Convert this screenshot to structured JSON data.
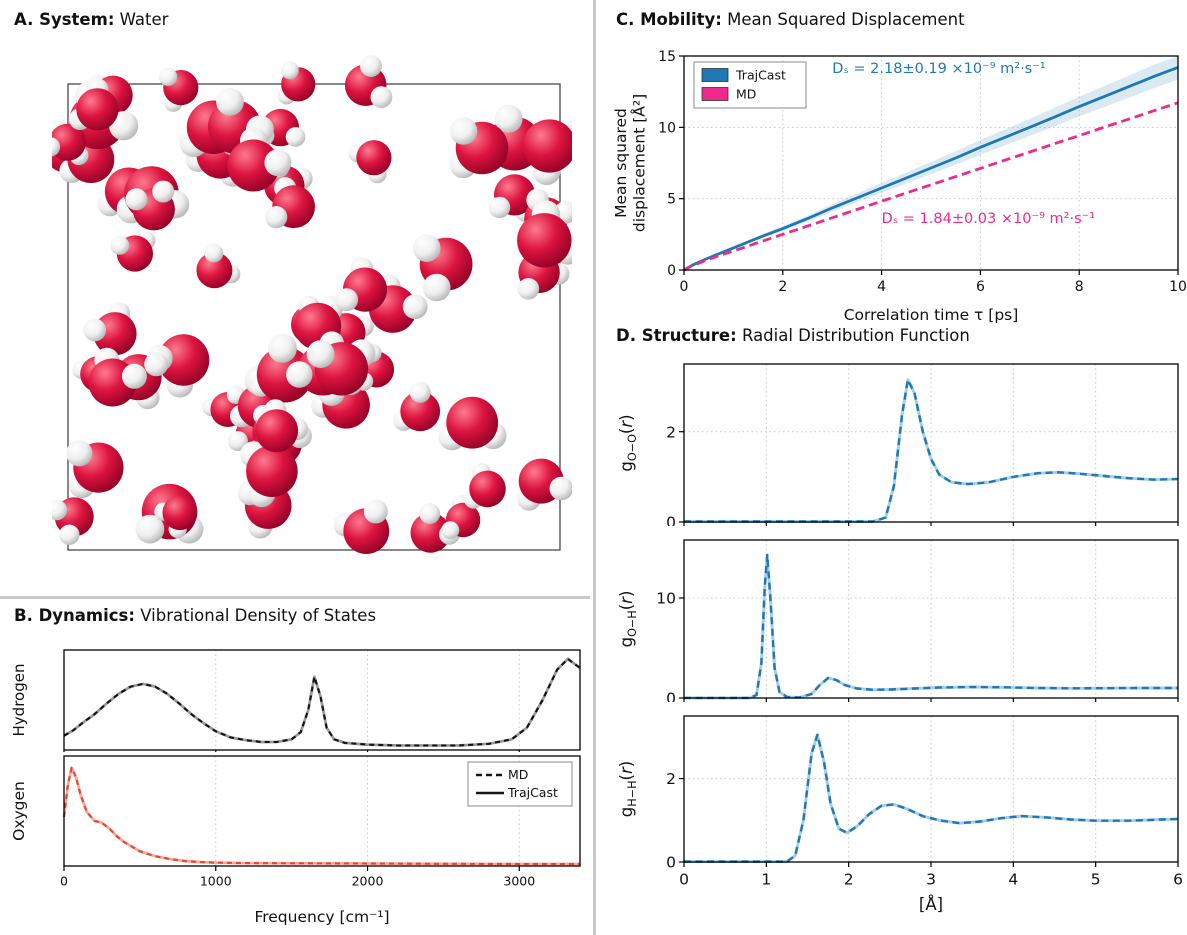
{
  "panels": {
    "a": {
      "title_bold": "A. System:",
      "title_rest": " Water"
    },
    "b": {
      "title_bold": "B. Dynamics:",
      "title_rest": " Vibrational Density of States"
    },
    "c": {
      "title_bold": "C. Mobility:",
      "title_rest": " Mean Squared Displacement"
    },
    "d": {
      "title_bold": "D. Structure:",
      "title_rest": " Radial Distribution Function"
    }
  },
  "system": {
    "box_color": "#3a3a3a",
    "molecule_count": 64,
    "seed": 11,
    "oxygen": {
      "color_light": "#ff7b8e",
      "color_core": "#dc1440",
      "color_dark": "#8c0024",
      "radius": 23
    },
    "hydrogen": {
      "color_light": "#ffffff",
      "color_core": "#efefef",
      "color_dark": "#b0b0b0",
      "radius": 12
    }
  },
  "chart_data": [
    {
      "id": "msd",
      "type": "line",
      "title": "C. Mobility: Mean Squared Displacement",
      "xlabel": "Correlation time τ  [ps]",
      "ylabel_lines": [
        "Mean squared",
        "displacement [Å²]"
      ],
      "xlim": [
        0,
        10
      ],
      "ylim": [
        0,
        15
      ],
      "xticks": [
        0,
        2,
        4,
        6,
        8,
        10
      ],
      "yticks": [
        0,
        5,
        10,
        15
      ],
      "series": [
        {
          "name": "TrajCast",
          "color": "#1f78b4",
          "style": "solid",
          "width": 2.8,
          "band_frac": 0.06,
          "pts": [
            [
              0,
              0
            ],
            [
              0.15,
              0.3
            ],
            [
              0.3,
              0.55
            ],
            [
              0.5,
              0.85
            ],
            [
              0.75,
              1.2
            ],
            [
              1,
              1.55
            ],
            [
              1.5,
              2.25
            ],
            [
              2,
              2.9
            ],
            [
              2.5,
              3.6
            ],
            [
              3,
              4.35
            ],
            [
              3.5,
              5.05
            ],
            [
              4,
              5.75
            ],
            [
              4.5,
              6.45
            ],
            [
              5,
              7.15
            ],
            [
              5.5,
              7.85
            ],
            [
              6,
              8.6
            ],
            [
              6.5,
              9.3
            ],
            [
              7,
              10.0
            ],
            [
              7.5,
              10.72
            ],
            [
              8,
              11.45
            ],
            [
              8.5,
              12.15
            ],
            [
              9,
              12.85
            ],
            [
              9.5,
              13.55
            ],
            [
              10,
              14.2
            ]
          ]
        },
        {
          "name": "MD",
          "color": "#ee2a8c",
          "style": "dashed",
          "dash": "9 5",
          "width": 2.8,
          "pts": [
            [
              0,
              0
            ],
            [
              0.15,
              0.28
            ],
            [
              0.3,
              0.48
            ],
            [
              0.5,
              0.75
            ],
            [
              0.75,
              1.05
            ],
            [
              1,
              1.33
            ],
            [
              1.5,
              1.92
            ],
            [
              2,
              2.5
            ],
            [
              2.5,
              3.08
            ],
            [
              3,
              3.66
            ],
            [
              3.5,
              4.24
            ],
            [
              4,
              4.82
            ],
            [
              4.5,
              5.4
            ],
            [
              5,
              5.97
            ],
            [
              5.5,
              6.55
            ],
            [
              6,
              7.12
            ],
            [
              6.5,
              7.7
            ],
            [
              7,
              8.27
            ],
            [
              7.5,
              8.85
            ],
            [
              8,
              9.42
            ],
            [
              8.5,
              10.0
            ],
            [
              9,
              10.57
            ],
            [
              9.5,
              11.15
            ],
            [
              10,
              11.72
            ]
          ]
        }
      ],
      "legend": {
        "items": [
          {
            "label": "TrajCast",
            "color": "#1f78b4"
          },
          {
            "label": "MD",
            "color": "#ee2a8c"
          }
        ]
      },
      "annotations": [
        {
          "text": "Dₛ = 2.18±0.19 ×10⁻⁹ m²·s⁻¹",
          "color": "#1f78b4"
        },
        {
          "text": "Dₛ = 1.84±0.03 ×10⁻⁹ m²·s⁻¹",
          "color": "#ee2a8c"
        }
      ]
    },
    {
      "id": "vdos_h",
      "type": "line",
      "title": "B. Dynamics: Vibrational Density of States (Hydrogen)",
      "ylabel": "Hydrogen",
      "xlim": [
        0,
        3400
      ],
      "ylim": [
        0,
        1.12
      ],
      "xticks": [
        0,
        1000,
        2000,
        3000
      ],
      "xtick_labels": false,
      "yticks": [],
      "series": [
        {
          "name": "TrajCast",
          "color": "#999999",
          "style": "solid",
          "width": 2.7,
          "pts": [
            [
              0,
              0.16
            ],
            [
              60,
              0.22
            ],
            [
              120,
              0.3
            ],
            [
              200,
              0.4
            ],
            [
              280,
              0.52
            ],
            [
              360,
              0.63
            ],
            [
              440,
              0.71
            ],
            [
              520,
              0.74
            ],
            [
              600,
              0.71
            ],
            [
              680,
              0.63
            ],
            [
              760,
              0.52
            ],
            [
              840,
              0.4
            ],
            [
              920,
              0.3
            ],
            [
              1000,
              0.21
            ],
            [
              1100,
              0.14
            ],
            [
              1200,
              0.11
            ],
            [
              1300,
              0.09
            ],
            [
              1400,
              0.09
            ],
            [
              1500,
              0.12
            ],
            [
              1560,
              0.2
            ],
            [
              1610,
              0.45
            ],
            [
              1650,
              0.82
            ],
            [
              1690,
              0.6
            ],
            [
              1730,
              0.25
            ],
            [
              1780,
              0.12
            ],
            [
              1850,
              0.08
            ],
            [
              2000,
              0.06
            ],
            [
              2200,
              0.05
            ],
            [
              2400,
              0.05
            ],
            [
              2600,
              0.05
            ],
            [
              2800,
              0.07
            ],
            [
              2950,
              0.12
            ],
            [
              3050,
              0.25
            ],
            [
              3150,
              0.55
            ],
            [
              3250,
              0.9
            ],
            [
              3320,
              1.02
            ],
            [
              3400,
              0.92
            ]
          ]
        },
        {
          "name": "MD",
          "color": "#141414",
          "style": "dashed",
          "dash": "5 4",
          "width": 2.1,
          "same_as_prev": true
        }
      ]
    },
    {
      "id": "vdos_o",
      "type": "line",
      "title": "B. Dynamics: Vibrational Density of States (Oxygen)",
      "ylabel": "Oxygen",
      "xlabel": "Frequency [cm⁻¹]",
      "xlim": [
        0,
        3400
      ],
      "ylim": [
        0,
        1.12
      ],
      "xticks": [
        0,
        1000,
        2000,
        3000
      ],
      "yticks": [],
      "series": [
        {
          "name": "TrajCast",
          "color": "#f7a79a",
          "style": "solid",
          "width": 2.7,
          "pts": [
            [
              0,
              0.5
            ],
            [
              25,
              0.82
            ],
            [
              50,
              1.0
            ],
            [
              80,
              0.9
            ],
            [
              110,
              0.72
            ],
            [
              150,
              0.55
            ],
            [
              200,
              0.46
            ],
            [
              250,
              0.44
            ],
            [
              300,
              0.38
            ],
            [
              350,
              0.3
            ],
            [
              400,
              0.24
            ],
            [
              500,
              0.15
            ],
            [
              600,
              0.1
            ],
            [
              700,
              0.07
            ],
            [
              800,
              0.05
            ],
            [
              900,
              0.04
            ],
            [
              1000,
              0.035
            ],
            [
              1200,
              0.03
            ],
            [
              1500,
              0.028
            ],
            [
              2000,
              0.025
            ],
            [
              2500,
              0.022
            ],
            [
              3000,
              0.02
            ],
            [
              3400,
              0.02
            ]
          ]
        },
        {
          "name": "MD",
          "color": "#e64531",
          "style": "dashed",
          "dash": "5 4",
          "width": 2.1,
          "same_as_prev": true
        }
      ],
      "legend": {
        "items": [
          {
            "label": "MD",
            "color": "#141414",
            "style": "dashed"
          },
          {
            "label": "TrajCast",
            "color": "#141414",
            "style": "solid"
          }
        ]
      }
    },
    {
      "id": "rdf_oo",
      "type": "line",
      "title": "D. Structure: Radial Distribution Function g O-O",
      "ylabel_parts": [
        {
          "t": "g"
        },
        {
          "t": "O−O",
          "sub": true
        },
        {
          "t": "("
        },
        {
          "t": "r",
          "italic": true
        },
        {
          "t": ")"
        }
      ],
      "xlim": [
        0,
        6
      ],
      "ylim": [
        0,
        3.5
      ],
      "xticks": [
        0,
        1,
        2,
        3,
        4,
        5,
        6
      ],
      "xtick_labels": false,
      "yticks": [
        0,
        2
      ],
      "series": [
        {
          "name": "TrajCast",
          "color": "#a6cde4",
          "style": "solid",
          "width": 2.9,
          "pts": [
            [
              0,
              0.01
            ],
            [
              2.3,
              0.01
            ],
            [
              2.45,
              0.1
            ],
            [
              2.55,
              0.8
            ],
            [
              2.65,
              2.4
            ],
            [
              2.72,
              3.15
            ],
            [
              2.8,
              2.85
            ],
            [
              2.9,
              2.0
            ],
            [
              3.0,
              1.4
            ],
            [
              3.1,
              1.05
            ],
            [
              3.25,
              0.88
            ],
            [
              3.45,
              0.84
            ],
            [
              3.7,
              0.88
            ],
            [
              4.0,
              1.0
            ],
            [
              4.3,
              1.08
            ],
            [
              4.55,
              1.1
            ],
            [
              4.8,
              1.07
            ],
            [
              5.1,
              1.02
            ],
            [
              5.4,
              0.97
            ],
            [
              5.7,
              0.94
            ],
            [
              6,
              0.95
            ]
          ]
        },
        {
          "name": "MD",
          "color": "#1f78b4",
          "style": "dashed",
          "dash": "7 4.5",
          "width": 2.4,
          "same_as_prev": true
        }
      ]
    },
    {
      "id": "rdf_oh",
      "type": "line",
      "title": "D. Structure: Radial Distribution Function g O-H",
      "ylabel_parts": [
        {
          "t": "g"
        },
        {
          "t": "O−H",
          "sub": true
        },
        {
          "t": "("
        },
        {
          "t": "r",
          "italic": true
        },
        {
          "t": ")"
        }
      ],
      "xlim": [
        0,
        6
      ],
      "ylim": [
        0,
        15.8
      ],
      "xticks": [
        0,
        1,
        2,
        3,
        4,
        5,
        6
      ],
      "xtick_labels": false,
      "yticks": [
        0,
        10
      ],
      "series": [
        {
          "name": "TrajCast",
          "color": "#a6cde4",
          "style": "solid",
          "width": 2.9,
          "pts": [
            [
              0,
              0.01
            ],
            [
              0.8,
              0.01
            ],
            [
              0.88,
              0.3
            ],
            [
              0.94,
              3.5
            ],
            [
              0.98,
              11
            ],
            [
              1.01,
              14.3
            ],
            [
              1.05,
              10
            ],
            [
              1.1,
              3
            ],
            [
              1.16,
              0.6
            ],
            [
              1.25,
              0.1
            ],
            [
              1.4,
              0.05
            ],
            [
              1.55,
              0.4
            ],
            [
              1.65,
              1.3
            ],
            [
              1.75,
              2.0
            ],
            [
              1.85,
              1.8
            ],
            [
              1.95,
              1.3
            ],
            [
              2.1,
              0.95
            ],
            [
              2.3,
              0.82
            ],
            [
              2.5,
              0.85
            ],
            [
              2.8,
              0.95
            ],
            [
              3.1,
              1.05
            ],
            [
              3.5,
              1.1
            ],
            [
              3.9,
              1.07
            ],
            [
              4.3,
              1.0
            ],
            [
              4.7,
              0.97
            ],
            [
              5.1,
              0.98
            ],
            [
              5.5,
              1.0
            ],
            [
              6,
              1.0
            ]
          ]
        },
        {
          "name": "MD",
          "color": "#1f78b4",
          "style": "dashed",
          "dash": "7 4.5",
          "width": 2.4,
          "same_as_prev": true
        }
      ]
    },
    {
      "id": "rdf_hh",
      "type": "line",
      "title": "D. Structure: Radial Distribution Function g H-H",
      "ylabel_parts": [
        {
          "t": "g"
        },
        {
          "t": "H−H",
          "sub": true
        },
        {
          "t": "("
        },
        {
          "t": "r",
          "italic": true
        },
        {
          "t": ")"
        }
      ],
      "xlabel": "[Å]",
      "xlim": [
        0,
        6
      ],
      "ylim": [
        0,
        3.5
      ],
      "xticks": [
        0,
        1,
        2,
        3,
        4,
        5,
        6
      ],
      "yticks": [
        0,
        2
      ],
      "series": [
        {
          "name": "TrajCast",
          "color": "#a6cde4",
          "style": "solid",
          "width": 2.9,
          "pts": [
            [
              0,
              0.01
            ],
            [
              1.25,
              0.01
            ],
            [
              1.35,
              0.15
            ],
            [
              1.45,
              1.0
            ],
            [
              1.55,
              2.6
            ],
            [
              1.62,
              3.05
            ],
            [
              1.7,
              2.4
            ],
            [
              1.78,
              1.4
            ],
            [
              1.88,
              0.8
            ],
            [
              1.98,
              0.7
            ],
            [
              2.1,
              0.85
            ],
            [
              2.25,
              1.15
            ],
            [
              2.4,
              1.35
            ],
            [
              2.55,
              1.38
            ],
            [
              2.7,
              1.28
            ],
            [
              2.9,
              1.1
            ],
            [
              3.1,
              1.0
            ],
            [
              3.35,
              0.93
            ],
            [
              3.6,
              0.97
            ],
            [
              3.85,
              1.05
            ],
            [
              4.1,
              1.1
            ],
            [
              4.4,
              1.07
            ],
            [
              4.7,
              1.02
            ],
            [
              5.0,
              0.99
            ],
            [
              5.4,
              0.99
            ],
            [
              5.8,
              1.02
            ],
            [
              6,
              1.03
            ]
          ]
        },
        {
          "name": "MD",
          "color": "#1f78b4",
          "style": "dashed",
          "dash": "7 4.5",
          "width": 2.4,
          "same_as_prev": true
        }
      ]
    }
  ]
}
